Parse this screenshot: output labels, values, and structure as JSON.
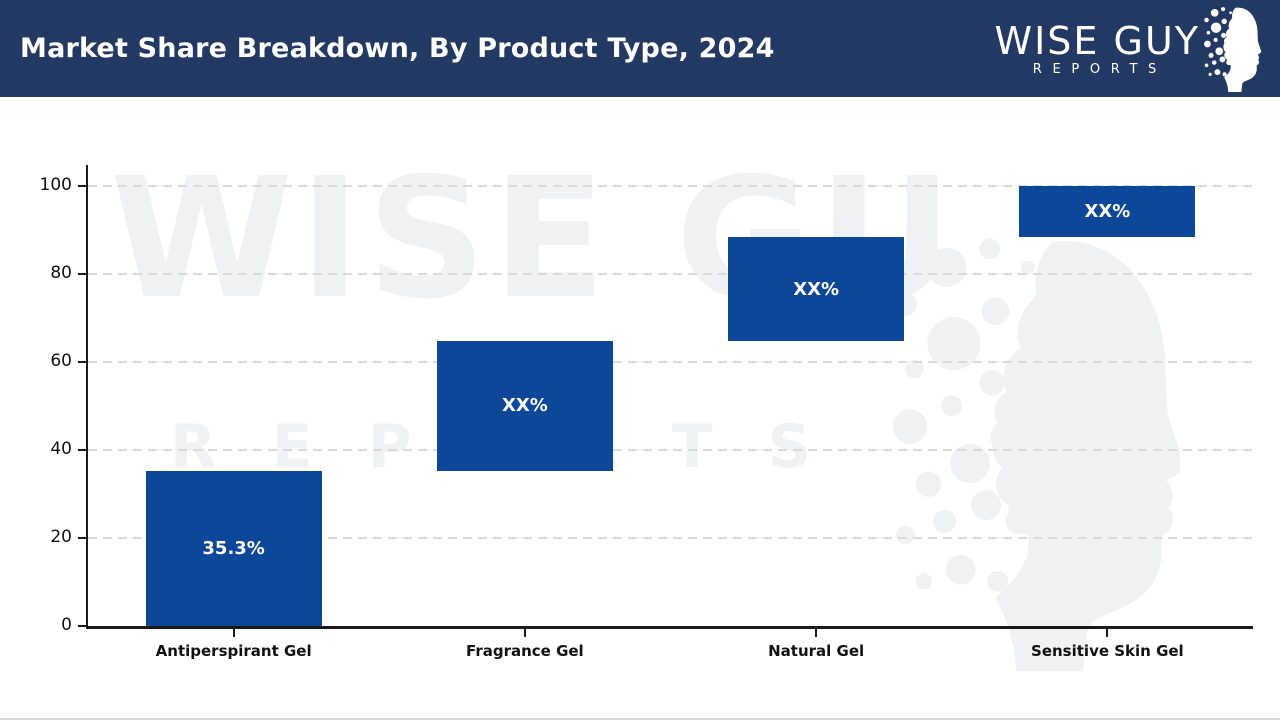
{
  "header": {
    "title": "Market Share Breakdown, By Product Type, 2024",
    "logo": {
      "line1": "WISE GUY",
      "line2": "REPORTS"
    }
  },
  "watermark": {
    "line1": "WISE GU",
    "line2": "REPORTS"
  },
  "colors": {
    "header_bg": "#223a63",
    "bar": "#0c4799",
    "bar_label": "#ffffff",
    "watermark": "#f0f1f3",
    "gridline": "#d9d9d9",
    "axis": "#1a1a1a"
  },
  "chart_data": {
    "type": "bar",
    "subtype": "floating-waterfall",
    "title": "Market Share Breakdown, By Product Type, 2024",
    "xlabel": "",
    "ylabel": "",
    "categories": [
      "Antiperspirant Gel",
      "Fragrance Gel",
      "Natural Gel",
      "Sensitive Skin Gel"
    ],
    "segments": [
      {
        "category": "Antiperspirant Gel",
        "start": 0,
        "end": 35.3,
        "label": "35.3%"
      },
      {
        "category": "Fragrance Gel",
        "start": 35.3,
        "end": 64.8,
        "label": "XX%"
      },
      {
        "category": "Natural Gel",
        "start": 64.8,
        "end": 88.3,
        "label": "XX%"
      },
      {
        "category": "Sensitive Skin Gel",
        "start": 88.3,
        "end": 100,
        "label": "XX%"
      }
    ],
    "yticks": [
      0,
      20,
      40,
      60,
      80,
      100
    ],
    "ylim": [
      0,
      105
    ],
    "grid": "horizontal-dashed",
    "legend": "none"
  }
}
